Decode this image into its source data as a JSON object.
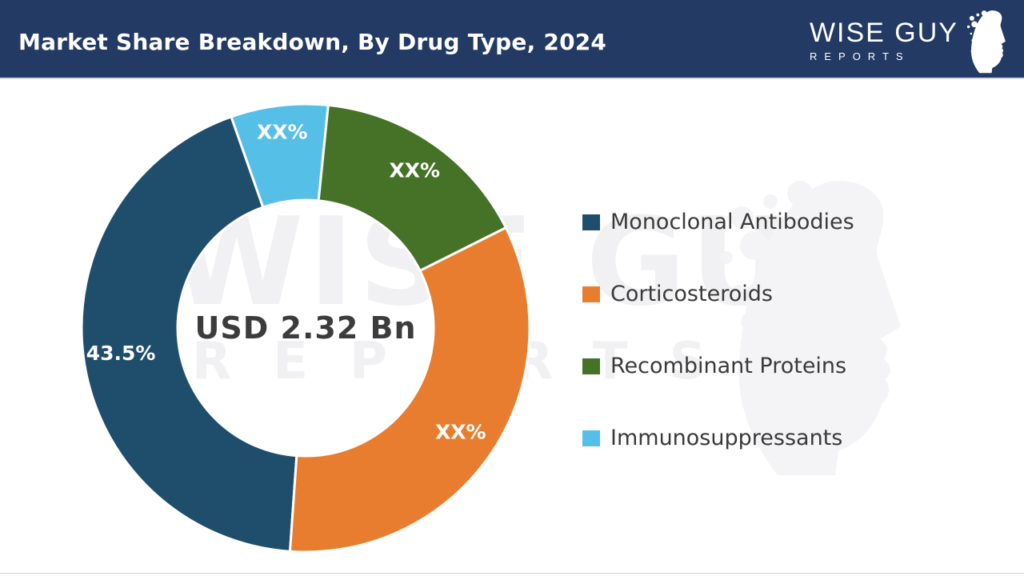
{
  "header": {
    "title": "Market Share Breakdown, By Drug Type, 2024",
    "background": "#233A64"
  },
  "logo": {
    "line1": "WISE GUY",
    "line2": "REPORTS"
  },
  "watermark": {
    "line1": "WISE GUY",
    "line2": "REPORTS"
  },
  "chart_data": {
    "type": "pie",
    "subtype": "donut",
    "title": "Market Share Breakdown, By Drug Type, 2024",
    "center_label": "USD 2.32 Bn",
    "start_angle_deg": 184,
    "direction": "clockwise",
    "inner_radius_ratio": 0.57,
    "legend_position": "right",
    "slices": [
      {
        "name": "Monoclonal Antibodies",
        "display_label": "43.5%",
        "value_pct": 43.5,
        "color": "#1F4E6D",
        "label_radius": 233
      },
      {
        "name": "Immunosuppressants",
        "display_label": "XX%",
        "value_pct": 7.0,
        "color": "#56BFE8",
        "label_radius": 247
      },
      {
        "name": "Recombinant Proteins",
        "display_label": "XX%",
        "value_pct": 16.0,
        "color": "#467228",
        "label_radius": 240
      },
      {
        "name": "Corticosteroids",
        "display_label": "XX%",
        "value_pct": 33.5,
        "color": "#E97D2F",
        "label_radius": 233
      }
    ]
  },
  "legend": {
    "items": [
      {
        "label": "Monoclonal Antibodies",
        "color": "#1F4E6D"
      },
      {
        "label": "Corticosteroids",
        "color": "#E97D2F"
      },
      {
        "label": "Recombinant Proteins",
        "color": "#467228"
      },
      {
        "label": "Immunosuppressants",
        "color": "#56BFE8"
      }
    ]
  }
}
